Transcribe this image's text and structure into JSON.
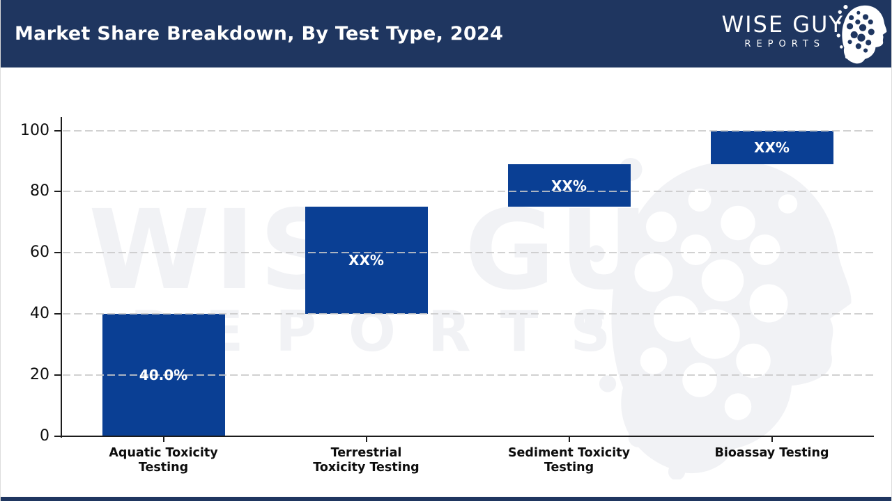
{
  "header": {
    "title": "Market Share Breakdown, By Test Type, 2024",
    "brand": {
      "name_top": "WISE GUY",
      "name_bottom": "REPORTS",
      "head_icon": "dotted-head-profile-icon"
    }
  },
  "watermark": {
    "text_top": "WISE GUY",
    "text_bottom": "REPORTS",
    "head_icon": "dotted-head-profile-watermark"
  },
  "theme": {
    "header_bg": "#1f3660",
    "footer_bg": "#1f3660",
    "canvas_bg": "#ffffff",
    "title_color": "#ffffff",
    "watermark_color": "#f1f2f5"
  },
  "chart_data": {
    "type": "bar",
    "variant": "waterfall-floating-bars",
    "title": "Market Share Breakdown, By Test Type, 2024",
    "categories": [
      "Aquatic Toxicity Testing",
      "Terrestrial Toxicity Testing",
      "Sediment Toxicity Testing",
      "Bioassay Testing"
    ],
    "category_label_lines": [
      [
        "Aquatic Toxicity",
        "Testing"
      ],
      [
        "Terrestrial",
        "Toxicity Testing"
      ],
      [
        "Sediment Toxicity",
        "Testing"
      ],
      [
        "Bioassay Testing"
      ]
    ],
    "bars": [
      {
        "category": "Aquatic Toxicity Testing",
        "start": 0,
        "end": 40,
        "value": 40,
        "label": "40.0%"
      },
      {
        "category": "Terrestrial Toxicity Testing",
        "start": 40,
        "end": 75,
        "value": 35,
        "label": "XX%"
      },
      {
        "category": "Sediment Toxicity Testing",
        "start": 75,
        "end": 89,
        "value": 14,
        "label": "XX%"
      },
      {
        "category": "Bioassay Testing",
        "start": 89,
        "end": 100,
        "value": 11,
        "label": "XX%"
      }
    ],
    "xlabel": "",
    "ylabel": "",
    "ylim": [
      0,
      105
    ],
    "yticks": [
      0,
      20,
      40,
      60,
      80,
      100
    ],
    "grid": {
      "horizontal": true,
      "style": "dashed",
      "color": "#d2d2d2"
    },
    "legend": null,
    "colors": {
      "bar": "#0a3f94",
      "bar_label": "#ffffff",
      "axis": "#1c1c1c",
      "tick_label": "#0d0d0d"
    }
  }
}
